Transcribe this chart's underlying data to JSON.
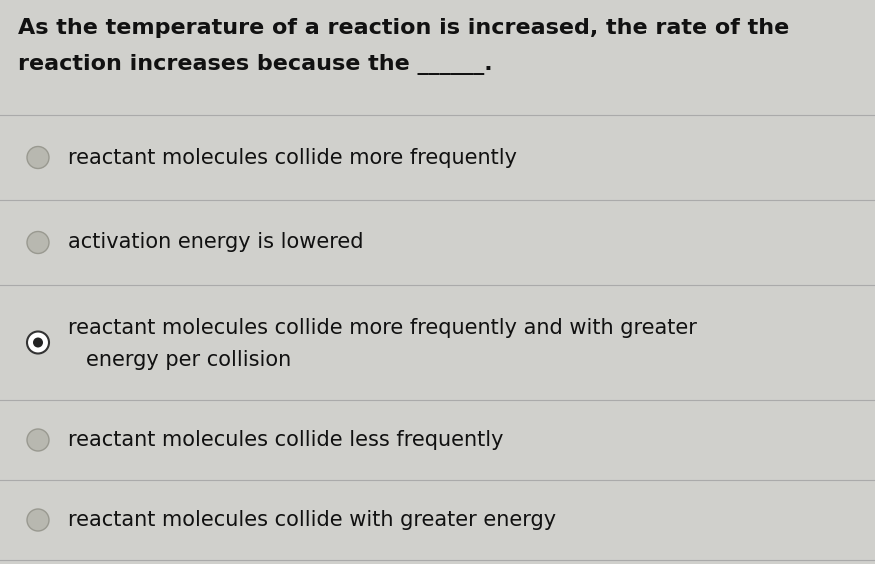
{
  "background_color": "#d0d0cc",
  "question_line1": "As the temperature of a reaction is increased, the rate of the",
  "question_line2": "reaction increases because the ______.",
  "options": [
    {
      "text": "reactant molecules collide more frequently",
      "selected": false,
      "multiline": false,
      "line2": ""
    },
    {
      "text": "activation energy is lowered",
      "selected": false,
      "multiline": false,
      "line2": ""
    },
    {
      "text": "reactant molecules collide more frequently and with greater",
      "selected": true,
      "multiline": true,
      "line2": "energy per collision"
    },
    {
      "text": "reactant molecules collide less frequently",
      "selected": false,
      "multiline": false,
      "line2": ""
    },
    {
      "text": "reactant molecules collide with greater energy",
      "selected": false,
      "multiline": false,
      "line2": ""
    }
  ],
  "divider_color": "#aaaaaa",
  "text_color": "#111111",
  "radio_fill_color": "#b8b8b0",
  "radio_edge_color": "#999990",
  "radio_selected_fill": "#ffffff",
  "radio_selected_edge": "#333333",
  "radio_selected_dot": "#222222",
  "font_size_question": 16,
  "font_size_option": 15,
  "fig_width": 8.75,
  "fig_height": 5.64,
  "dpi": 100
}
